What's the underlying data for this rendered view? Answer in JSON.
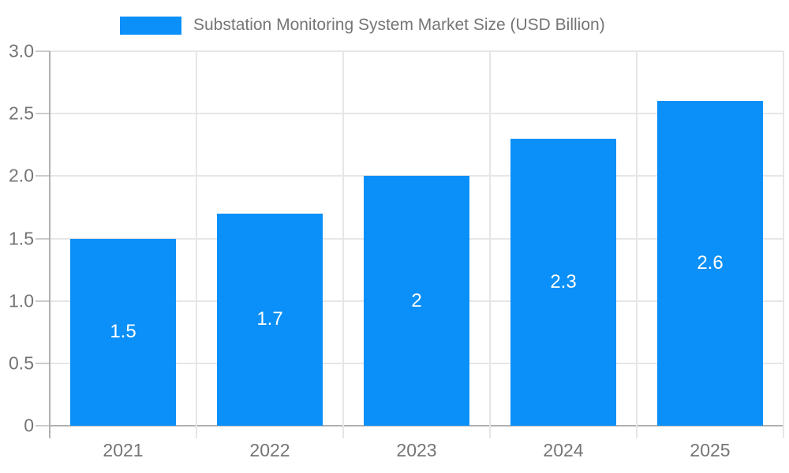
{
  "chart_data": {
    "type": "bar",
    "title": "Substation Monitoring System Market Size (USD Billion)",
    "categories": [
      "2021",
      "2022",
      "2023",
      "2024",
      "2025"
    ],
    "values": [
      1.5,
      1.7,
      2,
      2.3,
      2.6
    ],
    "value_labels": [
      "1.5",
      "1.7",
      "2",
      "2.3",
      "2.6"
    ],
    "y_ticks": [
      0,
      0.5,
      1,
      1.5,
      2,
      2.5,
      3
    ],
    "y_tick_labels": [
      "0",
      "0.5",
      "1.0",
      "1.5",
      "2.0",
      "2.5",
      "3.0"
    ],
    "ylim": [
      0,
      3
    ],
    "xlabel": "",
    "ylabel": "",
    "legend_position": "top",
    "grid": true,
    "colors": {
      "bar": "#0a90f8",
      "grid": "#e6e6e6",
      "axis": "#b0b0b0",
      "tick": "#cccccc",
      "text": "#757575",
      "value_label": "#ffffff",
      "background": "#ffffff"
    }
  }
}
